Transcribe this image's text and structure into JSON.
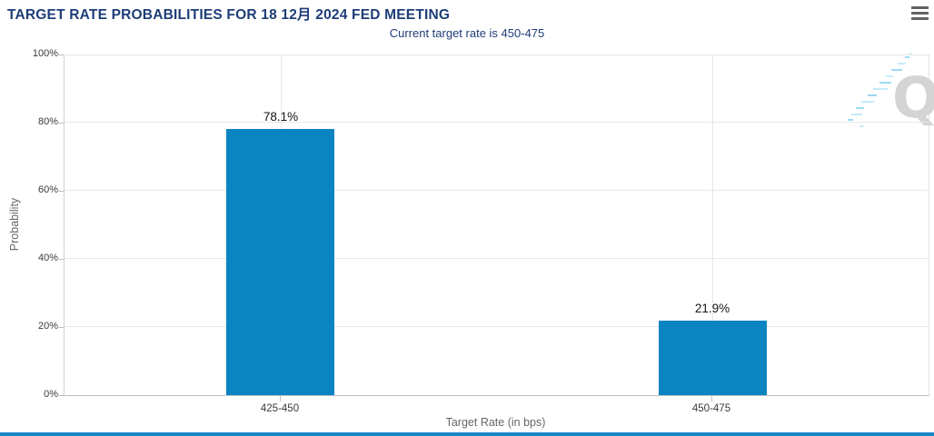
{
  "header": {
    "title": "TARGET RATE PROBABILITIES FOR 18 12月 2024 FED MEETING",
    "subtitle": "Current target rate is 450-475",
    "menu_icon": "hamburger-menu"
  },
  "chart_data": {
    "type": "bar",
    "title": "TARGET RATE PROBABILITIES FOR 18 12月 2024 FED MEETING",
    "subtitle": "Current target rate is 450-475",
    "categories": [
      "425-450",
      "450-475"
    ],
    "values": [
      78.1,
      21.9
    ],
    "value_labels": [
      "78.1%",
      "21.9%"
    ],
    "xlabel": "Target Rate (in bps)",
    "ylabel": "Probability",
    "ylim": [
      0,
      100
    ],
    "yticks": [
      0,
      20,
      40,
      60,
      80,
      100
    ],
    "ytick_labels": [
      "0%",
      "20%",
      "40%",
      "60%",
      "80%",
      "100%"
    ],
    "grid": true,
    "legend": false,
    "bar_color": "#0b84c2",
    "watermark": "Q"
  },
  "colors": {
    "title_text": "#1e3d78",
    "subtitle_text": "#1e3d78",
    "bar_fill": "#0b84c2",
    "grid_line": "#e5e7e9",
    "axis_line": "#b9c0c4",
    "tick_text": "#3a3a3a",
    "axis_title_text": "#66666b",
    "value_label_text": "#141414",
    "watermark_q": "#d4d4d4",
    "watermark_dash": "#9ed9f2",
    "watermark_dash_light": "#c5ebfa",
    "menu_icon": "#636363",
    "footer_bar": "#1787c5"
  }
}
